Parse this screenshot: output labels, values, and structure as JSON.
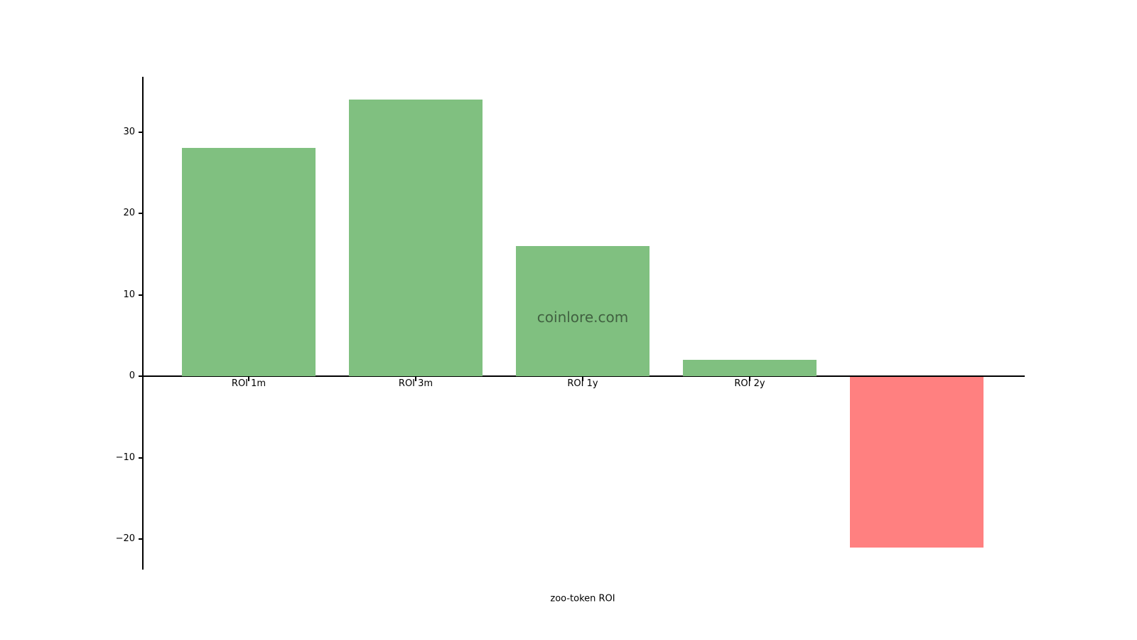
{
  "chart_data": {
    "type": "bar",
    "categories": [
      "ROI 1m",
      "ROI 3m",
      "ROI 1y",
      "ROI 2y",
      ""
    ],
    "values": [
      28,
      34,
      16,
      2,
      -21
    ],
    "title": "",
    "xlabel": "zoo-token ROI",
    "ylabel": "",
    "yticks": [
      30,
      20,
      10,
      0,
      -10,
      -20
    ],
    "ylim": [
      -23.75,
      36.75
    ],
    "grid": false,
    "legend": false,
    "watermark": "coinlore.com",
    "colors": {
      "positive_bar": "#80c080",
      "negative_bar": "#ff8080",
      "axis": "#000000",
      "tick_text": "#000000"
    }
  }
}
